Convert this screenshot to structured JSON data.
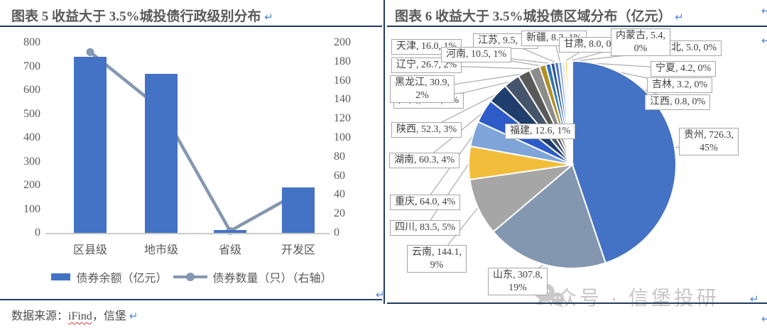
{
  "figure5": {
    "title": "图表 5 收益大于 3.5%城投债行政级别分布",
    "return_mark": "↵",
    "left_axis_ticks": [
      "800",
      "700",
      "600",
      "500",
      "400",
      "300",
      "200",
      "100",
      "0"
    ],
    "right_axis_ticks": [
      "200",
      "180",
      "160",
      "140",
      "120",
      "100",
      "80",
      "60",
      "40",
      "20",
      "0"
    ],
    "legend": [
      {
        "label": "债券余额（亿元）",
        "type": "bar",
        "color": "#4472c4"
      },
      {
        "label": "债券数量（只）（右轴）",
        "type": "line",
        "color": "#8497b0"
      }
    ]
  },
  "figure6": {
    "title": "图表 6 收益大于 3.5%城投债区域分布（亿元）",
    "return_mark": "↵",
    "regions": [
      {
        "name": "贵州",
        "value": 726.3,
        "pct": "45%",
        "color": "#4472c4",
        "label_lines": [
          "贵州, 726.3,",
          "45%"
        ]
      },
      {
        "name": "山东",
        "value": 307.8,
        "pct": "19%",
        "color": "#8497b0",
        "label_lines": [
          "山东, 307.8,",
          "19%"
        ]
      },
      {
        "name": "云南",
        "value": 144.1,
        "pct": "9%",
        "color": "#a6a6a6",
        "label_lines": [
          "云南, 144.1,",
          "9%"
        ]
      },
      {
        "name": "四川",
        "value": 83.5,
        "pct": "5%",
        "color": "#f2bd3a",
        "label_lines": [
          "四川, 83.5, 5%"
        ]
      },
      {
        "name": "重庆",
        "value": 64.0,
        "pct": "4%",
        "color": "#7ea4d9",
        "label_lines": [
          "重庆, 64.0, 4%"
        ]
      },
      {
        "name": "湖南",
        "value": 60.3,
        "pct": "4%",
        "color": "#2d5bc8",
        "label_lines": [
          "湖南, 60.3, 4%"
        ]
      },
      {
        "name": "陕西",
        "value": 52.3,
        "pct": "3%",
        "color": "#1f3d6d",
        "label_lines": [
          "陕西, 52.3, 3%"
        ]
      },
      {
        "name": "广西",
        "value": 41.1,
        "pct": "3%",
        "color": "#44546a",
        "label_lines": [
          "广西, 41.1, 3%"
        ]
      },
      {
        "name": "黑龙江",
        "value": 30.9,
        "pct": "2%",
        "color": "#595959",
        "label_lines": [
          "黑龙江, 30.9,",
          "2%"
        ]
      },
      {
        "name": "辽宁",
        "value": 26.7,
        "pct": "2%",
        "color": "#8c8c8c",
        "label_lines": [
          "辽宁, 26.7, 2%"
        ]
      },
      {
        "name": "天津",
        "value": 16.0,
        "pct": "1%",
        "color": "#b08f26",
        "label_lines": [
          "天津, 16.0, 1%"
        ]
      },
      {
        "name": "福建",
        "value": 12.6,
        "pct": "1%",
        "color": "#2e75b6",
        "label_lines": [
          "福建, 12.6, 1%"
        ]
      },
      {
        "name": "河南",
        "value": 10.5,
        "pct": "1%",
        "color": "#2f5597",
        "label_lines": [
          "河南, 10.5, 1%"
        ]
      },
      {
        "name": "江苏",
        "value": 9.5,
        "pct": "1%",
        "color": "#4472c4",
        "label_lines": [
          "江苏, 9.5, 1%"
        ]
      },
      {
        "name": "新疆",
        "value": 8.3,
        "pct": "1%",
        "color": "#8faadc",
        "label_lines": [
          "新疆, 8.3, 1%"
        ]
      },
      {
        "name": "甘肃",
        "value": 8.0,
        "pct": "0%",
        "color": "#e3e7ee",
        "label_lines": [
          "甘肃, 8.0, 0%"
        ]
      },
      {
        "name": "内蒙古",
        "value": 5.4,
        "pct": "0%",
        "color": "#ffc000",
        "label_lines": [
          "内蒙古, 5.4,",
          "0%"
        ]
      },
      {
        "name": "河北",
        "value": 5.0,
        "pct": "0%",
        "color": "#f2f4f8",
        "label_lines": [
          "河北, 5.0, 0%"
        ]
      },
      {
        "name": "宁夏",
        "value": 4.2,
        "pct": "0%",
        "color": "#bdd7ee",
        "label_lines": [
          "宁夏, 4.2, 0%"
        ]
      },
      {
        "name": "吉林",
        "value": 3.2,
        "pct": "0%",
        "color": "#9dc3e6",
        "label_lines": [
          "吉林, 3.2, 0%"
        ]
      },
      {
        "name": "江西",
        "value": 0.8,
        "pct": "0%",
        "color": "#d9e1f2",
        "label_lines": [
          "江西, 0.8, 0%"
        ]
      }
    ]
  },
  "footer": {
    "source_prefix": "数据来源：",
    "source_link": "iFind",
    "source_suffix": "，信堡",
    "return_mark": "↵"
  },
  "watermark": {
    "text": "公众号 · 信堡投研"
  },
  "colors": {
    "bar": "#4472c4",
    "line": "#8497b0",
    "border": "#1f3a60",
    "axis_line": "#c9c9c9",
    "leader_line": "#ababab",
    "return_mark": "#4a86d8"
  },
  "chart_data": [
    {
      "type": "bar",
      "title": "图表 5 收益大于 3.5%城投债行政级别分布",
      "categories": [
        "区县级",
        "地市级",
        "省级",
        "开发区"
      ],
      "series": [
        {
          "name": "债券余额（亿元）",
          "type": "bar",
          "axis": "left",
          "values": [
            740,
            670,
            12,
            190
          ]
        },
        {
          "name": "债券数量（只）（右轴）",
          "type": "line",
          "axis": "right",
          "values": [
            190,
            130,
            2,
            42
          ]
        }
      ],
      "xlabel": "",
      "ylabel": "",
      "ylim": [
        0,
        800
      ],
      "y2lim": [
        0,
        200
      ],
      "grid": false,
      "legend_position": "bottom"
    },
    {
      "type": "pie",
      "title": "图表 6 收益大于 3.5%城投债区域分布（亿元）",
      "labels": [
        "贵州",
        "山东",
        "云南",
        "四川",
        "重庆",
        "湖南",
        "陕西",
        "广西",
        "黑龙江",
        "辽宁",
        "天津",
        "福建",
        "河南",
        "江苏",
        "新疆",
        "甘肃",
        "内蒙古",
        "河北",
        "宁夏",
        "吉林",
        "江西"
      ],
      "values": [
        726.3,
        307.8,
        144.1,
        83.5,
        64.0,
        60.3,
        52.3,
        41.1,
        30.9,
        26.7,
        16.0,
        12.6,
        10.5,
        9.5,
        8.3,
        8.0,
        5.4,
        5.0,
        4.2,
        3.2,
        0.8
      ],
      "percent_labels": [
        "45%",
        "19%",
        "9%",
        "5%",
        "4%",
        "4%",
        "3%",
        "3%",
        "2%",
        "2%",
        "1%",
        "1%",
        "1%",
        "1%",
        "1%",
        "0%",
        "0%",
        "0%",
        "0%",
        "0%",
        "0%"
      ],
      "start_angle_deg": 0,
      "direction": "clockwise",
      "legend_position": "none"
    }
  ]
}
